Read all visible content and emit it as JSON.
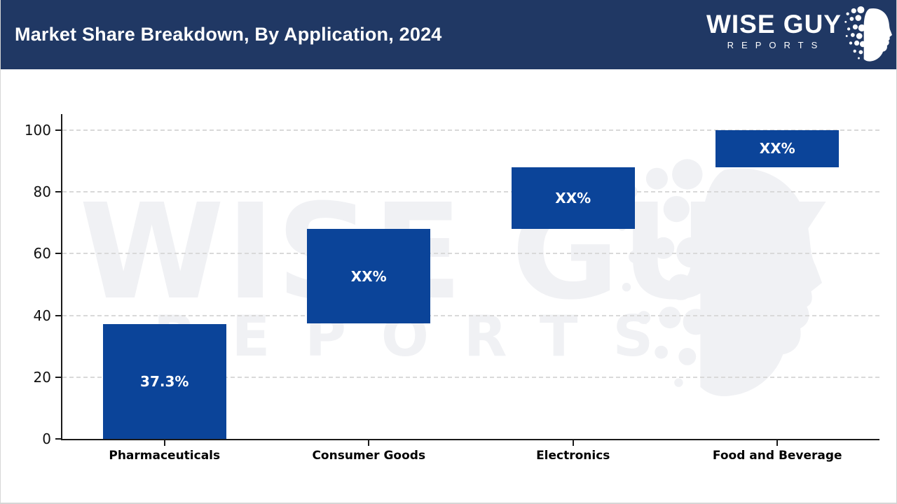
{
  "header": {
    "title": "Market Share Breakdown, By Application, 2024",
    "background_color": "#203864",
    "text_color": "#ffffff"
  },
  "logo": {
    "line1": "WISE GUY",
    "line2": "REPORTS",
    "head_icon": "dotted-head-profile"
  },
  "watermark": {
    "line1": "WISE GUY",
    "line2": "REPORTS",
    "color": "#f0f1f4"
  },
  "chart_data": {
    "type": "bar",
    "subtype": "floating-waterfall",
    "title": "Market Share Breakdown, By Application, 2024",
    "categories": [
      "Pharmaceuticals",
      "Consumer Goods",
      "Electronics",
      "Food and Beverage"
    ],
    "segments": [
      {
        "category": "Pharmaceuticals",
        "start": 0,
        "end": 37.3,
        "label": "37.3%"
      },
      {
        "category": "Consumer Goods",
        "start": 37.3,
        "end": 68,
        "label": "XX%"
      },
      {
        "category": "Electronics",
        "start": 68,
        "end": 88,
        "label": "XX%"
      },
      {
        "category": "Food and Beverage",
        "start": 88,
        "end": 100,
        "label": "XX%"
      }
    ],
    "yticks": [
      0,
      20,
      40,
      60,
      80,
      100
    ],
    "ylim": [
      0,
      100
    ],
    "xlabel": "",
    "ylabel": "",
    "grid": "horizontal-dashed",
    "legend": "none",
    "bar_color": "#0b4499",
    "gridline_color": "#d9d9d9",
    "axis_color": "#1a1a1a"
  }
}
